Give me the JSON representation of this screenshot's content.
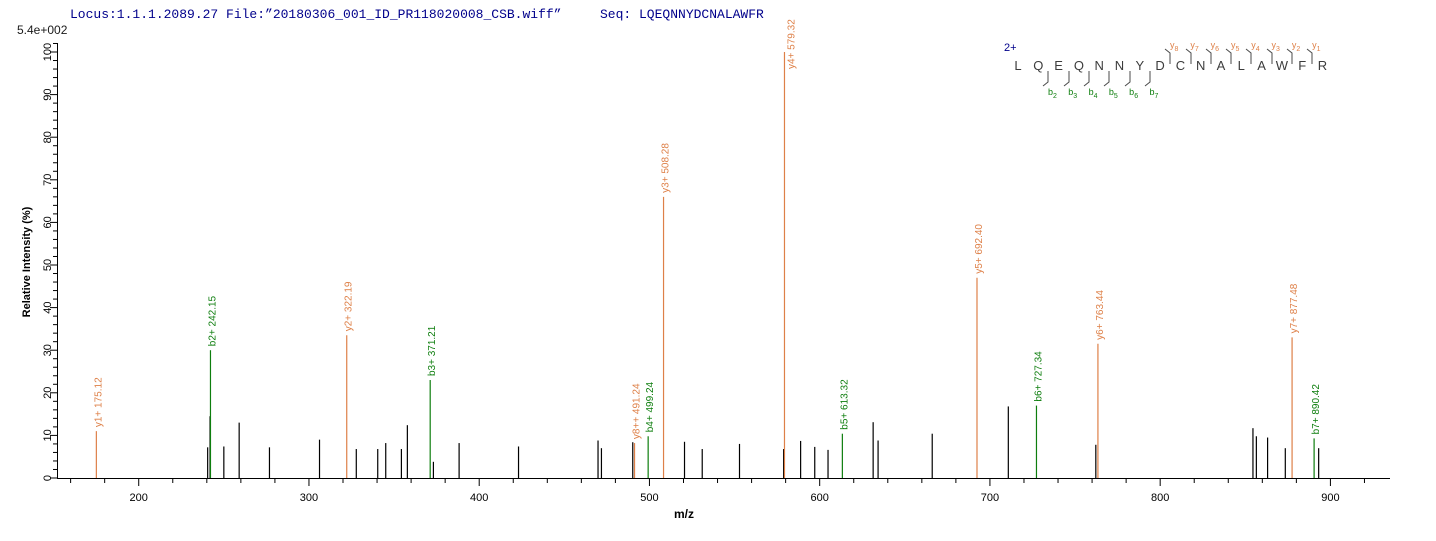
{
  "header": {
    "locus_file": "Locus:1.1.1.2089.27 File:”20180306_001_ID_PR118020008_CSB.wiff”",
    "seq": "Seq: LQEQNNYDCNALAWFR"
  },
  "colors": {
    "y_ion": "#DE8048",
    "b_ion": "#0E7E0E",
    "peak": "#000000",
    "axis": "#000000",
    "header_text": "#00008B",
    "residue_text": "#3C3C3C",
    "cut_mark": "#4A4A4A"
  },
  "peptide": {
    "charge_label": "2+",
    "sequence": "LQEQNNYDCNALAWFR",
    "b_cuts": [
      {
        "after": 2,
        "name": "b",
        "num": "2"
      },
      {
        "after": 3,
        "name": "b",
        "num": "3"
      },
      {
        "after": 4,
        "name": "b",
        "num": "4"
      },
      {
        "after": 5,
        "name": "b",
        "num": "5"
      },
      {
        "after": 6,
        "name": "b",
        "num": "6"
      },
      {
        "after": 7,
        "name": "b",
        "num": "7"
      }
    ],
    "y_cuts": [
      {
        "after": 8,
        "name": "y",
        "num": "8"
      },
      {
        "after": 9,
        "name": "y",
        "num": "7"
      },
      {
        "after": 10,
        "name": "y",
        "num": "6"
      },
      {
        "after": 11,
        "name": "y",
        "num": "5"
      },
      {
        "after": 12,
        "name": "y",
        "num": "4"
      },
      {
        "after": 13,
        "name": "y",
        "num": "3"
      },
      {
        "after": 14,
        "name": "y",
        "num": "2"
      },
      {
        "after": 15,
        "name": "y",
        "num": "1"
      }
    ]
  },
  "chart_data": {
    "type": "bar",
    "subtype": "mass-spectrum",
    "title": "",
    "xlabel": "m/z",
    "ylabel": "Relative Intensity (%)",
    "scale_label": "5.4e+002",
    "xlim": [
      152,
      935
    ],
    "ylim": [
      0,
      100
    ],
    "x_major_ticks": [
      200,
      300,
      400,
      500,
      600,
      700,
      800,
      900
    ],
    "x_minor_tick_step": 20,
    "y_major_ticks": [
      0,
      10,
      20,
      30,
      40,
      50,
      60,
      70,
      80,
      90,
      100
    ],
    "y_minor_tick_step": 2,
    "grid": false,
    "legend": false,
    "labeled_peaks": [
      {
        "label": "y1+ 175.12",
        "mz": 175.12,
        "intensity": 11,
        "type": "y"
      },
      {
        "label": "b2+ 242.15",
        "mz": 242.15,
        "intensity": 30,
        "type": "b"
      },
      {
        "label": "y2+ 322.19",
        "mz": 322.19,
        "intensity": 33.5,
        "type": "y"
      },
      {
        "label": "b3+ 371.21",
        "mz": 371.21,
        "intensity": 23,
        "type": "b"
      },
      {
        "label": "y8++ 491.24",
        "mz": 491.24,
        "intensity": 8.2,
        "type": "y"
      },
      {
        "label": "b4+ 499.24",
        "mz": 499.24,
        "intensity": 9.8,
        "type": "b"
      },
      {
        "label": "y3+ 508.28",
        "mz": 508.28,
        "intensity": 66,
        "type": "y"
      },
      {
        "label": "y4+ 579.32",
        "mz": 579.32,
        "intensity": 100,
        "type": "y"
      },
      {
        "label": "b5+ 613.32",
        "mz": 613.32,
        "intensity": 10.4,
        "type": "b"
      },
      {
        "label": "y5+ 692.40",
        "mz": 692.4,
        "intensity": 47,
        "type": "y"
      },
      {
        "label": "b6+ 727.34",
        "mz": 727.34,
        "intensity": 17,
        "type": "b"
      },
      {
        "label": "y6+ 763.44",
        "mz": 763.44,
        "intensity": 31.5,
        "type": "y"
      },
      {
        "label": "y7+ 877.48",
        "mz": 877.48,
        "intensity": 33,
        "type": "y"
      },
      {
        "label": "b7+ 890.42",
        "mz": 890.42,
        "intensity": 9.3,
        "type": "b"
      }
    ],
    "unlabeled_peaks": [
      [
        240.5,
        7.2
      ],
      [
        241.9,
        14.5
      ],
      [
        250.0,
        7.4
      ],
      [
        259.0,
        13.0
      ],
      [
        276.8,
        7.2
      ],
      [
        306.2,
        9.0
      ],
      [
        327.8,
        6.8
      ],
      [
        340.4,
        6.8
      ],
      [
        345.1,
        8.2
      ],
      [
        354.3,
        6.8
      ],
      [
        357.8,
        12.4
      ],
      [
        373.1,
        3.8
      ],
      [
        388.2,
        8.2
      ],
      [
        423.1,
        7.4
      ],
      [
        469.8,
        8.8
      ],
      [
        471.8,
        7.0
      ],
      [
        490.2,
        8.4
      ],
      [
        520.6,
        8.5
      ],
      [
        531.0,
        6.8
      ],
      [
        552.9,
        8.0
      ],
      [
        578.8,
        6.8
      ],
      [
        588.8,
        8.7
      ],
      [
        597.1,
        7.3
      ],
      [
        604.9,
        6.6
      ],
      [
        631.4,
        13.1
      ],
      [
        634.3,
        8.8
      ],
      [
        666.1,
        10.4
      ],
      [
        710.8,
        16.8
      ],
      [
        762.2,
        7.8
      ],
      [
        854.5,
        11.7
      ],
      [
        856.5,
        9.8
      ],
      [
        863.1,
        9.5
      ],
      [
        873.5,
        7.0
      ],
      [
        893.1,
        7.0
      ]
    ]
  }
}
